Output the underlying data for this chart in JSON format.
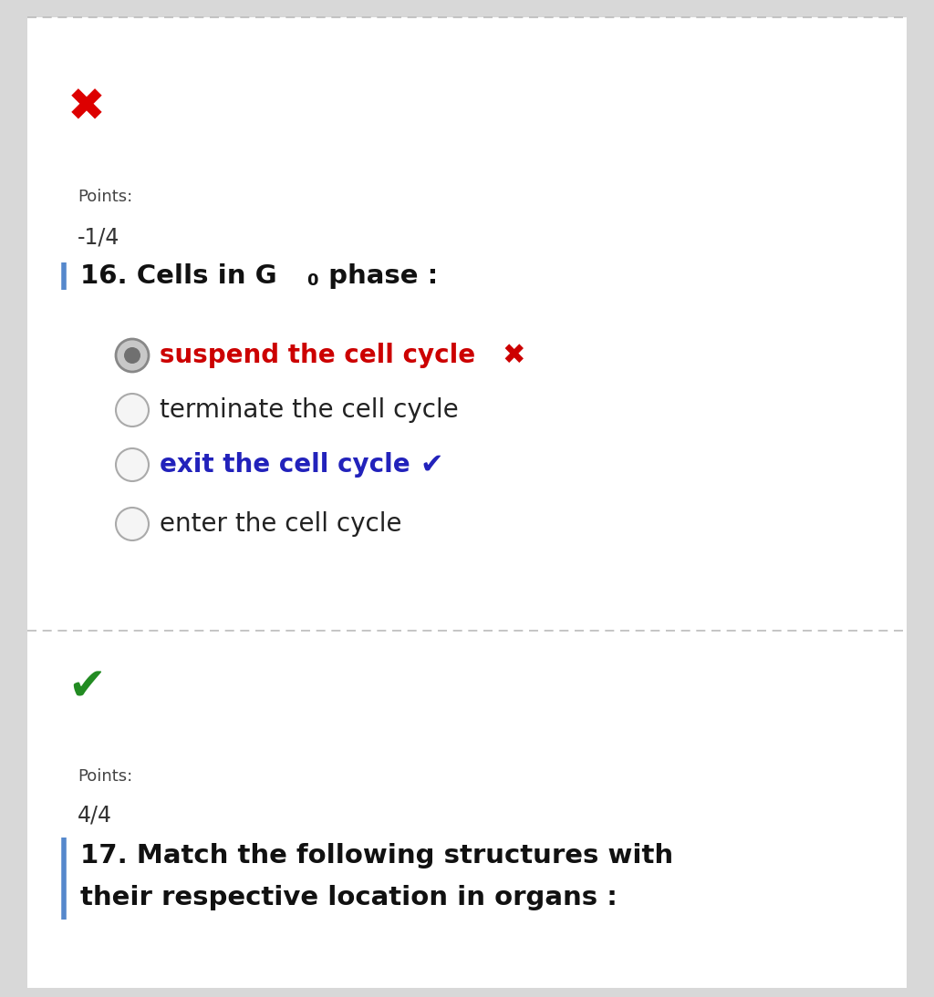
{
  "bg_color": "#ffffff",
  "page_bg": "#d8d8d8",
  "top_border_color": "#bbbbbb",
  "mid_border_color": "#bbbbbb",
  "left_bar_color": "#5588cc",
  "section1": {
    "icon": "✖",
    "icon_color": "#dd0000",
    "icon_fontsize": 36,
    "points_label": "Points:",
    "points_label_color": "#444444",
    "points_label_size": 13,
    "points_value": "-1/4",
    "points_value_color": "#333333",
    "points_value_size": 17,
    "question_main": "16. Cells in G",
    "question_sub": "0",
    "question_suffix": " phase :",
    "question_color": "#111111",
    "question_size": 21,
    "options": [
      {
        "text": "suspend the cell cycle",
        "color": "#cc0000",
        "bold": true,
        "selected": true,
        "marker": "✖",
        "marker_color": "#cc0000"
      },
      {
        "text": "terminate the cell cycle",
        "color": "#222222",
        "bold": false,
        "selected": false,
        "marker": null,
        "marker_color": null
      },
      {
        "text": "exit the cell cycle",
        "color": "#2222bb",
        "bold": true,
        "selected": false,
        "marker": "✔",
        "marker_color": "#2222bb"
      },
      {
        "text": "enter the cell cycle",
        "color": "#222222",
        "bold": false,
        "selected": false,
        "marker": null,
        "marker_color": null
      }
    ]
  },
  "section2": {
    "icon": "✔",
    "icon_color": "#228b22",
    "icon_fontsize": 36,
    "points_label": "Points:",
    "points_label_color": "#444444",
    "points_label_size": 13,
    "points_value": "4/4",
    "points_value_color": "#333333",
    "points_value_size": 17,
    "question_line1": "17. Match the following structures with",
    "question_line2": "their respective location in organs :",
    "question_color": "#111111",
    "question_size": 21
  }
}
